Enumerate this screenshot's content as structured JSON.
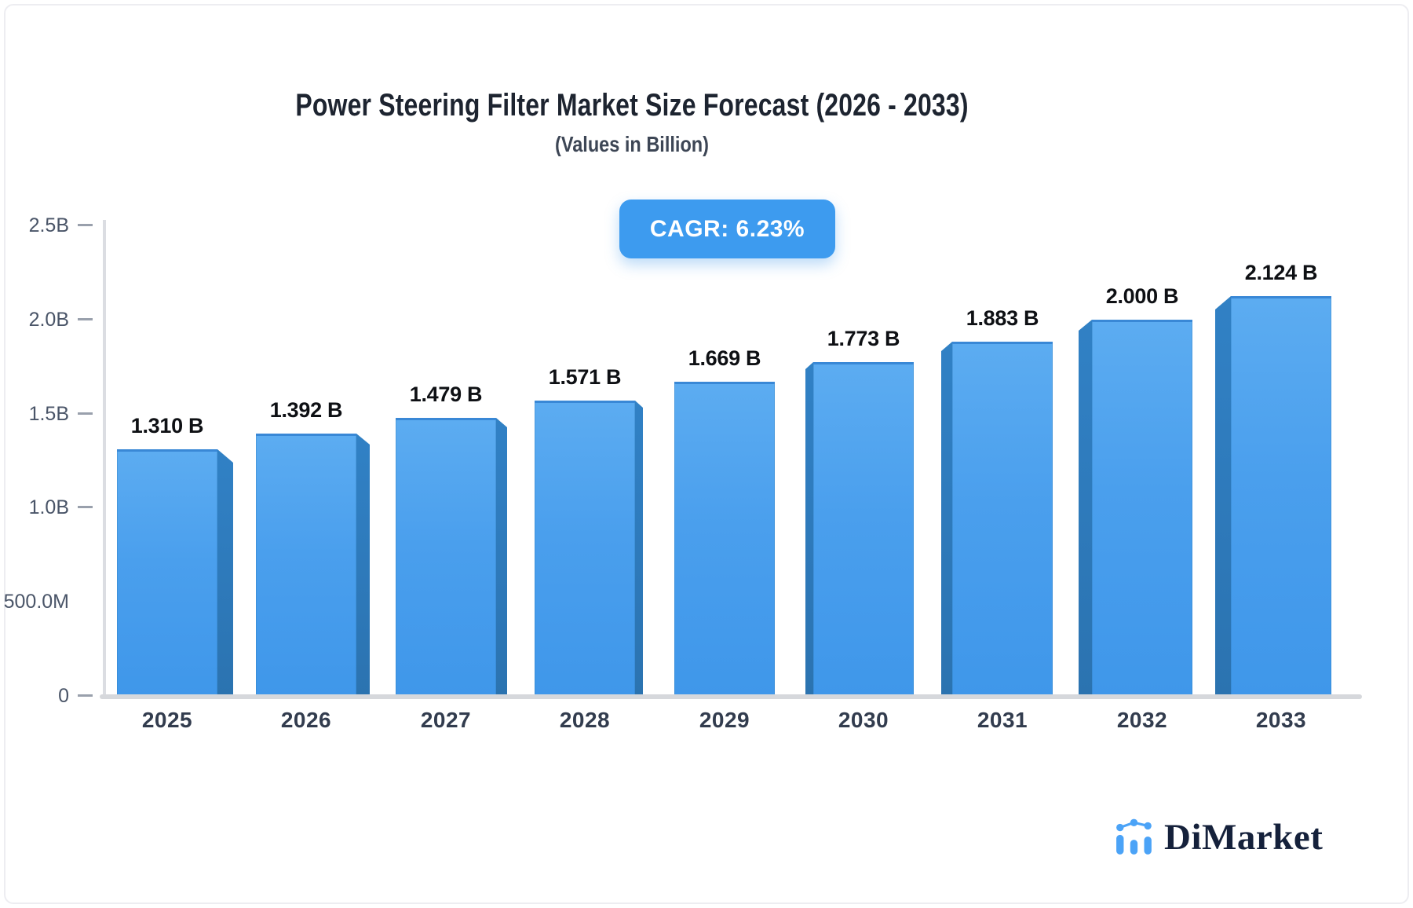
{
  "title": "Power Steering Filter Market Size Forecast (2026 - 2033)",
  "subtitle": "(Values in Billion)",
  "badge": {
    "label": "CAGR: 6.23%"
  },
  "branding": {
    "name": "DiMarket"
  },
  "colors": {
    "accent": "#3d9bef",
    "bar_face_top": "#5cacf1",
    "bar_face_bottom": "#3f97ea",
    "bar_side": "#2e7abb",
    "axis_gray": "#d6d8dc",
    "logo_blue": "#4ba3f7",
    "logo_navy": "#15213b"
  },
  "chart_data": {
    "type": "bar",
    "title": "Power Steering Filter Market Size Forecast (2026 - 2033)",
    "subtitle": "(Values in Billion)",
    "cagr_label": "CAGR: 6.23%",
    "categories": [
      "2025",
      "2026",
      "2027",
      "2028",
      "2029",
      "2030",
      "2031",
      "2032",
      "2033"
    ],
    "values": [
      1.31,
      1.392,
      1.479,
      1.571,
      1.669,
      1.773,
      1.883,
      2.0,
      2.124
    ],
    "value_labels": [
      "1.310 B",
      "1.392 B",
      "1.479 B",
      "1.571 B",
      "1.669 B",
      "1.773 B",
      "1.883 B",
      "2.000 B",
      "2.124 B"
    ],
    "xlabel": "",
    "ylabel": "",
    "ylim": [
      0,
      2.5
    ],
    "grid": false,
    "legend": "none",
    "yticks": [
      {
        "label": "2.5B",
        "value": 2.5,
        "dash": true
      },
      {
        "label": "2.0B",
        "value": 2.0,
        "dash": true
      },
      {
        "label": "1.5B",
        "value": 1.5,
        "dash": true
      },
      {
        "label": "1.0B",
        "value": 1.0,
        "dash": true
      },
      {
        "label": "500.0M",
        "value": 0.5,
        "dash": false
      },
      {
        "label": "0",
        "value": 0.0,
        "dash": true
      }
    ]
  }
}
